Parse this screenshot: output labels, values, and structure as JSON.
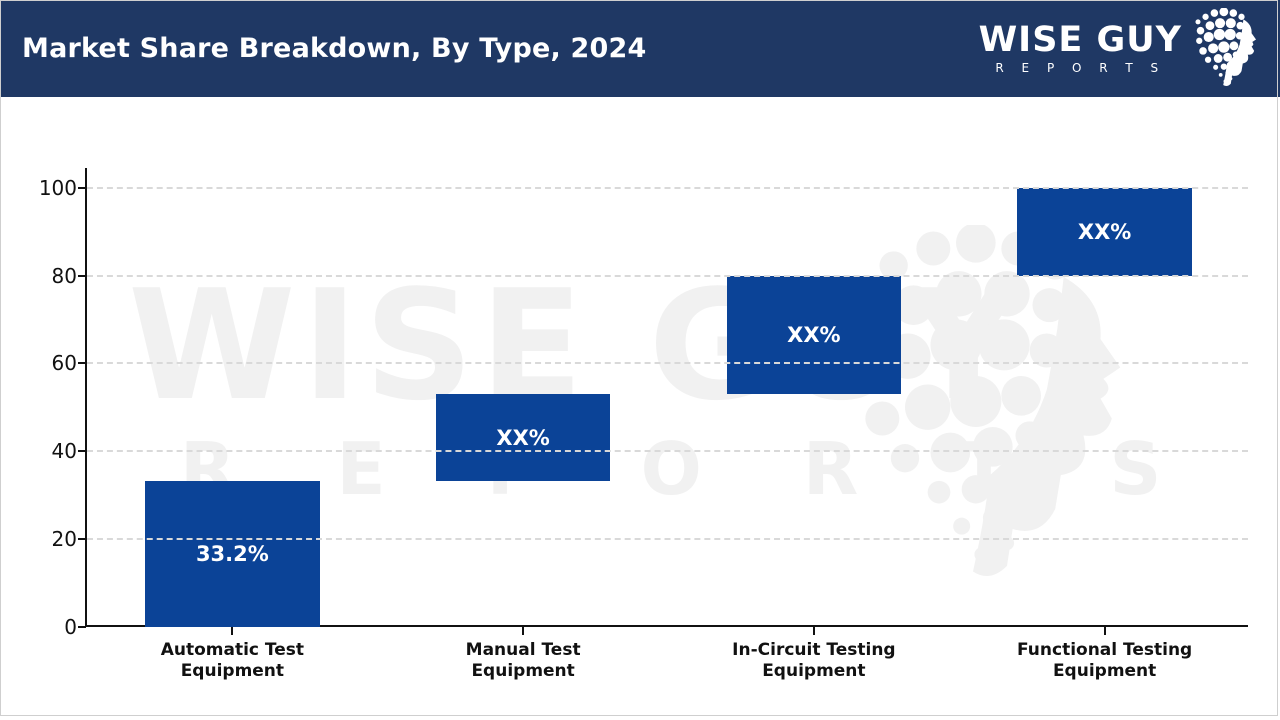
{
  "header": {
    "title": "Market Share Breakdown, By Type, 2024",
    "logo": {
      "line1": "WISE GUY",
      "line2": "R E P O R T S"
    }
  },
  "watermark": {
    "line1": "WISE GUY",
    "line2": "R E P O R T S"
  },
  "colors": {
    "header_bg": "#1f3864",
    "bar": "#0b4397",
    "bar_label": "#ffffff",
    "grid": "#d9d9d9",
    "axis": "#111111",
    "watermark": "#f1f1f1",
    "frame": "#cfcfcf",
    "title": "#ffffff"
  },
  "chart_data": {
    "type": "bar",
    "variant": "waterfall",
    "title": "Market Share Breakdown, By Type, 2024",
    "categories": [
      "Automatic Test Equipment",
      "Manual Test Equipment",
      "In-Circuit Testing Equipment",
      "Functional Testing Equipment"
    ],
    "category_lines": [
      [
        "Automatic Test",
        "Equipment"
      ],
      [
        "Manual Test",
        "Equipment"
      ],
      [
        "In-Circuit Testing",
        "Equipment"
      ],
      [
        "Functional Testing",
        "Equipment"
      ]
    ],
    "segments": [
      {
        "start": 0,
        "end": 33.2,
        "label": "33.2%"
      },
      {
        "start": 33.2,
        "end": 53,
        "label": "XX%"
      },
      {
        "start": 53,
        "end": 79.8,
        "label": "XX%"
      },
      {
        "start": 79.8,
        "end": 100,
        "label": "XX%"
      }
    ],
    "y_ticks": [
      0,
      20,
      40,
      60,
      80,
      100
    ],
    "ylim": [
      0,
      104.5
    ],
    "xlabel": "",
    "ylabel": "",
    "grid": "horizontal-dashed",
    "legend": "none"
  }
}
